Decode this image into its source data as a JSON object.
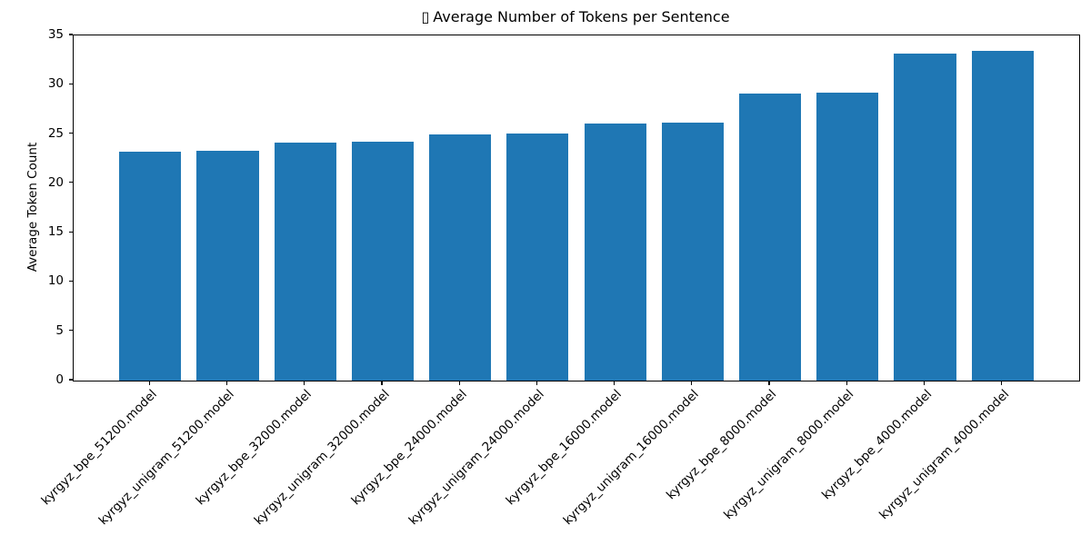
{
  "chart_data": {
    "type": "bar",
    "title_glyph": "▯",
    "title_text": "Average Number of Tokens per Sentence",
    "ylabel": "Average Token Count",
    "xlabel": "",
    "categories": [
      "kyrgyz_bpe_51200.model",
      "kyrgyz_unigram_51200.model",
      "kyrgyz_bpe_32000.model",
      "kyrgyz_unigram_32000.model",
      "kyrgyz_bpe_24000.model",
      "kyrgyz_unigram_24000.model",
      "kyrgyz_bpe_16000.model",
      "kyrgyz_unigram_16000.model",
      "kyrgyz_bpe_8000.model",
      "kyrgyz_unigram_8000.model",
      "kyrgyz_bpe_4000.model",
      "kyrgyz_unigram_4000.model"
    ],
    "values": [
      23.2,
      23.3,
      24.1,
      24.2,
      25.0,
      25.1,
      26.1,
      26.2,
      29.1,
      29.2,
      33.2,
      33.4
    ],
    "yticks": [
      0,
      5,
      10,
      15,
      20,
      25,
      30,
      35
    ],
    "ylim": [
      0,
      35
    ],
    "bar_color": "#1f77b4",
    "axis_color": "#000000",
    "grid": "off",
    "legend": "none",
    "xtick_rotation_deg": 45
  }
}
